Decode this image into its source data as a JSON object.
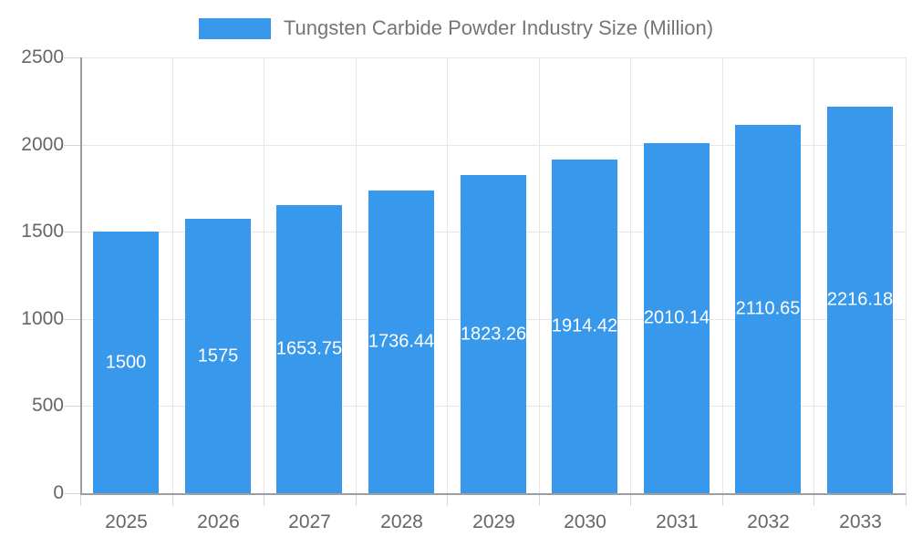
{
  "chart_data": {
    "type": "bar",
    "title": "Tungsten Carbide Powder Industry Size (Million)",
    "categories": [
      "2025",
      "2026",
      "2027",
      "2028",
      "2029",
      "2030",
      "2031",
      "2032",
      "2033"
    ],
    "series": [
      {
        "name": "Tungsten Carbide Powder Industry Size (Million)",
        "values": [
          1500,
          1575,
          1653.75,
          1736.44,
          1823.26,
          1914.42,
          2010.14,
          2110.65,
          2216.18
        ]
      }
    ],
    "value_labels": [
      "1500",
      "1575",
      "1653.75",
      "1736.44",
      "1823.26",
      "1914.42",
      "2010.14",
      "2110.65",
      "2216.18"
    ],
    "xlabel": "",
    "ylabel": "",
    "ylim": [
      0,
      2500
    ],
    "y_ticks": [
      0,
      500,
      1000,
      1500,
      2000,
      2500
    ],
    "grid": true,
    "legend_position": "top-center",
    "colors": {
      "bar": "#3899EC",
      "value_label": "#FFFFFF",
      "axis_text": "#666666",
      "title_text": "#757575",
      "gridline": "#E6E6E6",
      "axis_line": "#9E9E9E",
      "tick_mark": "#D6D6D6",
      "background": "#FFFFFF"
    }
  }
}
